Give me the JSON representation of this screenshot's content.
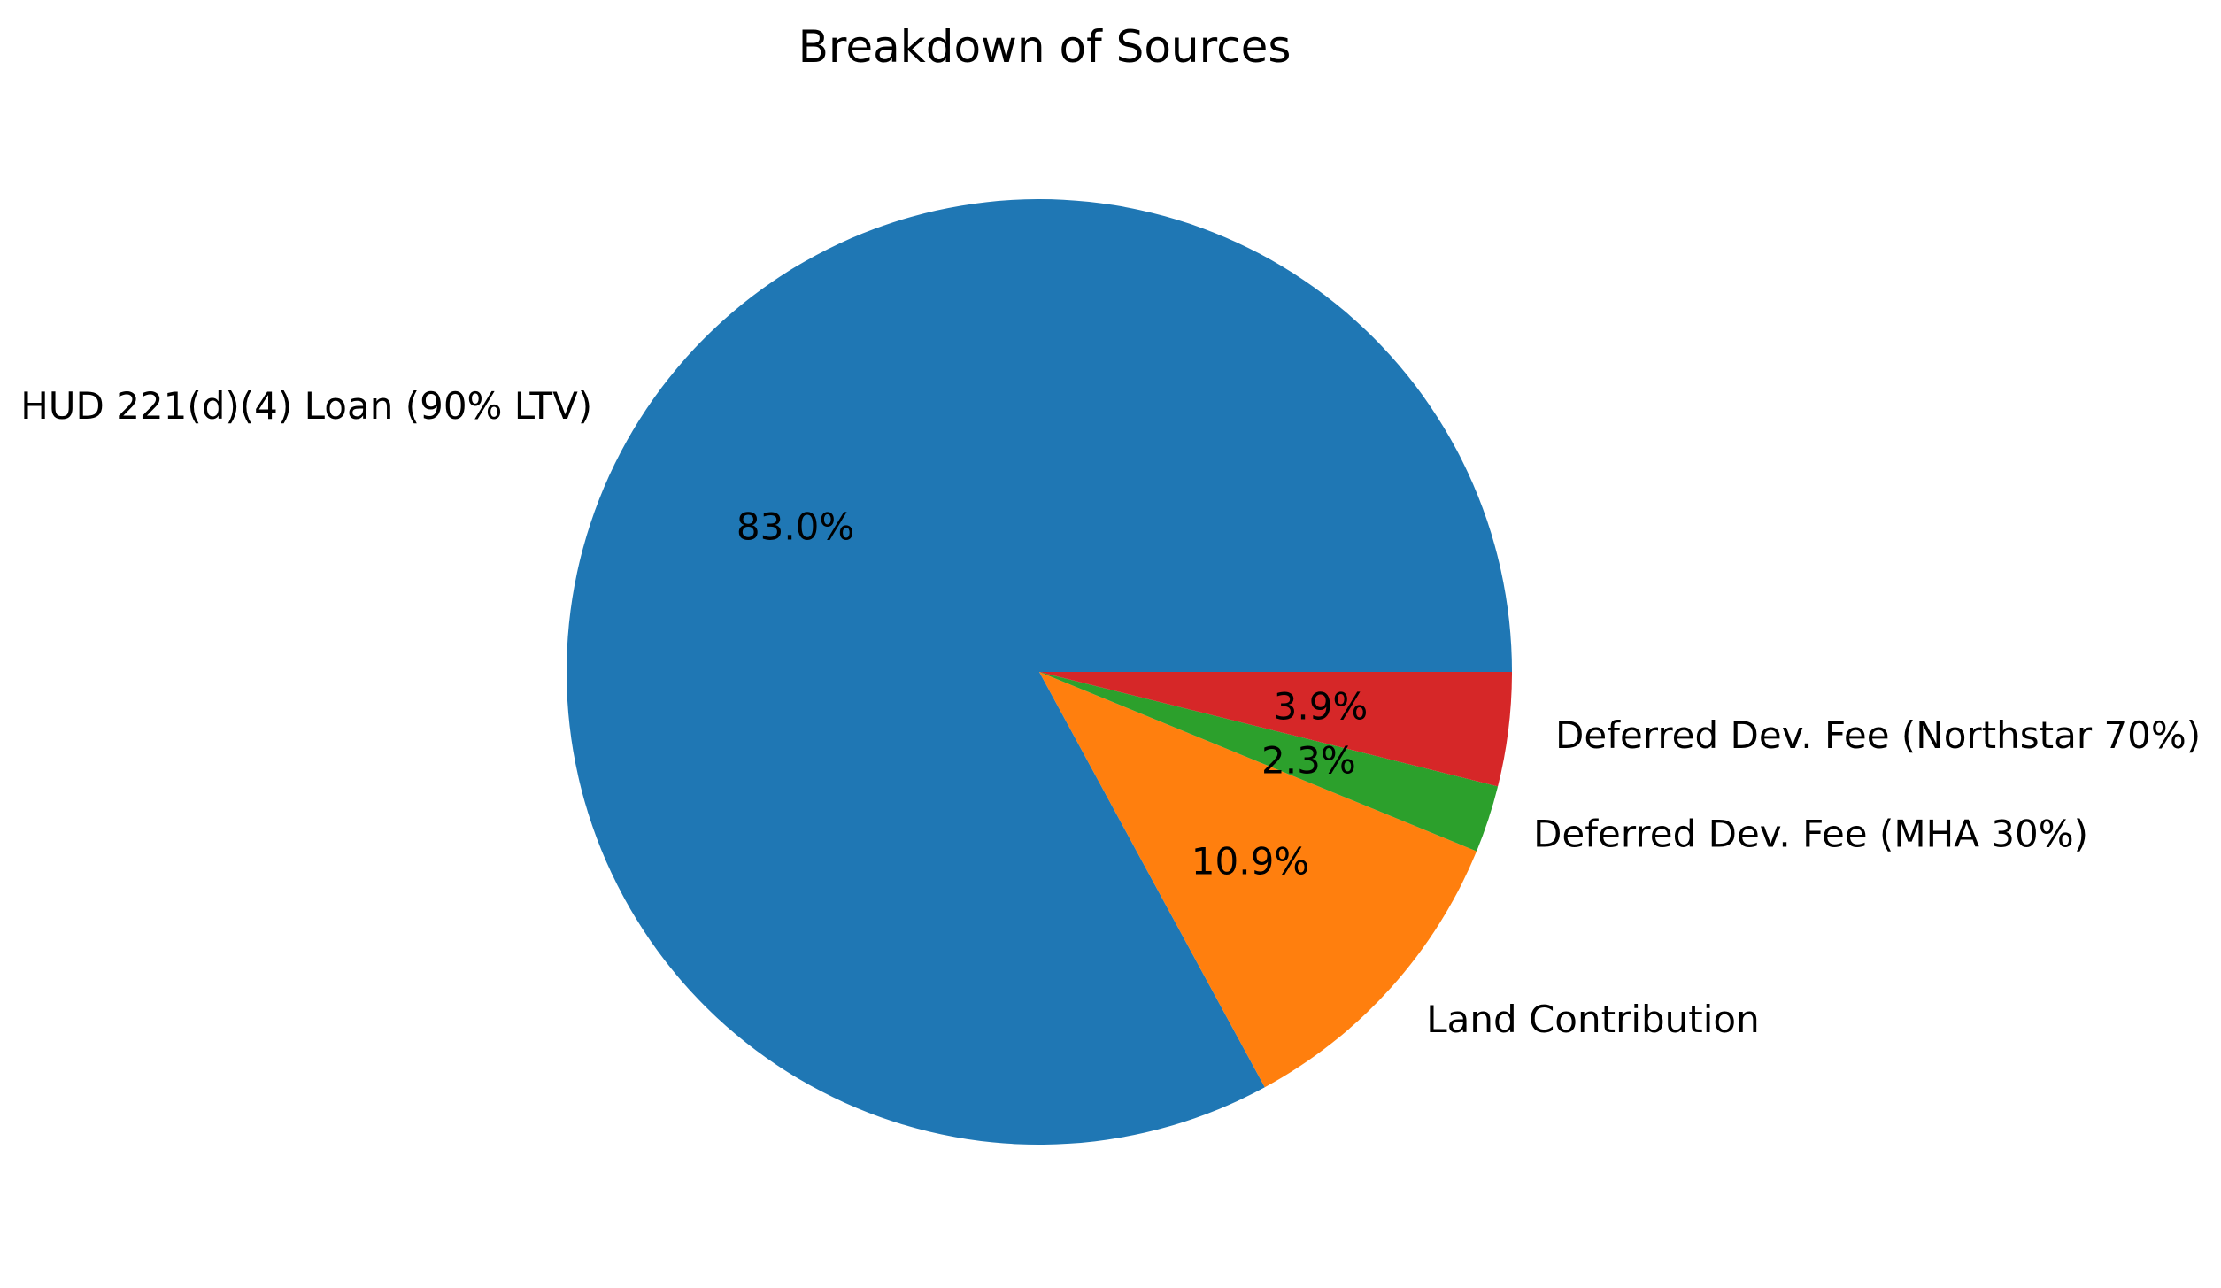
{
  "chart_data": {
    "type": "pie",
    "title": "Breakdown of Sources",
    "background_color": "#ffffff",
    "text_color": "#000000",
    "start_angle": 0,
    "counterclockwise": true,
    "legend": "none",
    "slices": [
      {
        "label": "HUD 221(d)(4) Loan (90% LTV)",
        "value": 83.0,
        "pct_label": "83.0%",
        "color": "#1f77b4"
      },
      {
        "label": "Land Contribution",
        "value": 10.9,
        "pct_label": "10.9%",
        "color": "#ff7f0e"
      },
      {
        "label": "Deferred Dev. Fee (MHA 30%)",
        "value": 2.3,
        "pct_label": "2.3%",
        "color": "#2ca02c"
      },
      {
        "label": "Deferred Dev. Fee (Northstar 70%)",
        "value": 3.9,
        "pct_label": "3.9%",
        "color": "#d62728"
      }
    ]
  }
}
